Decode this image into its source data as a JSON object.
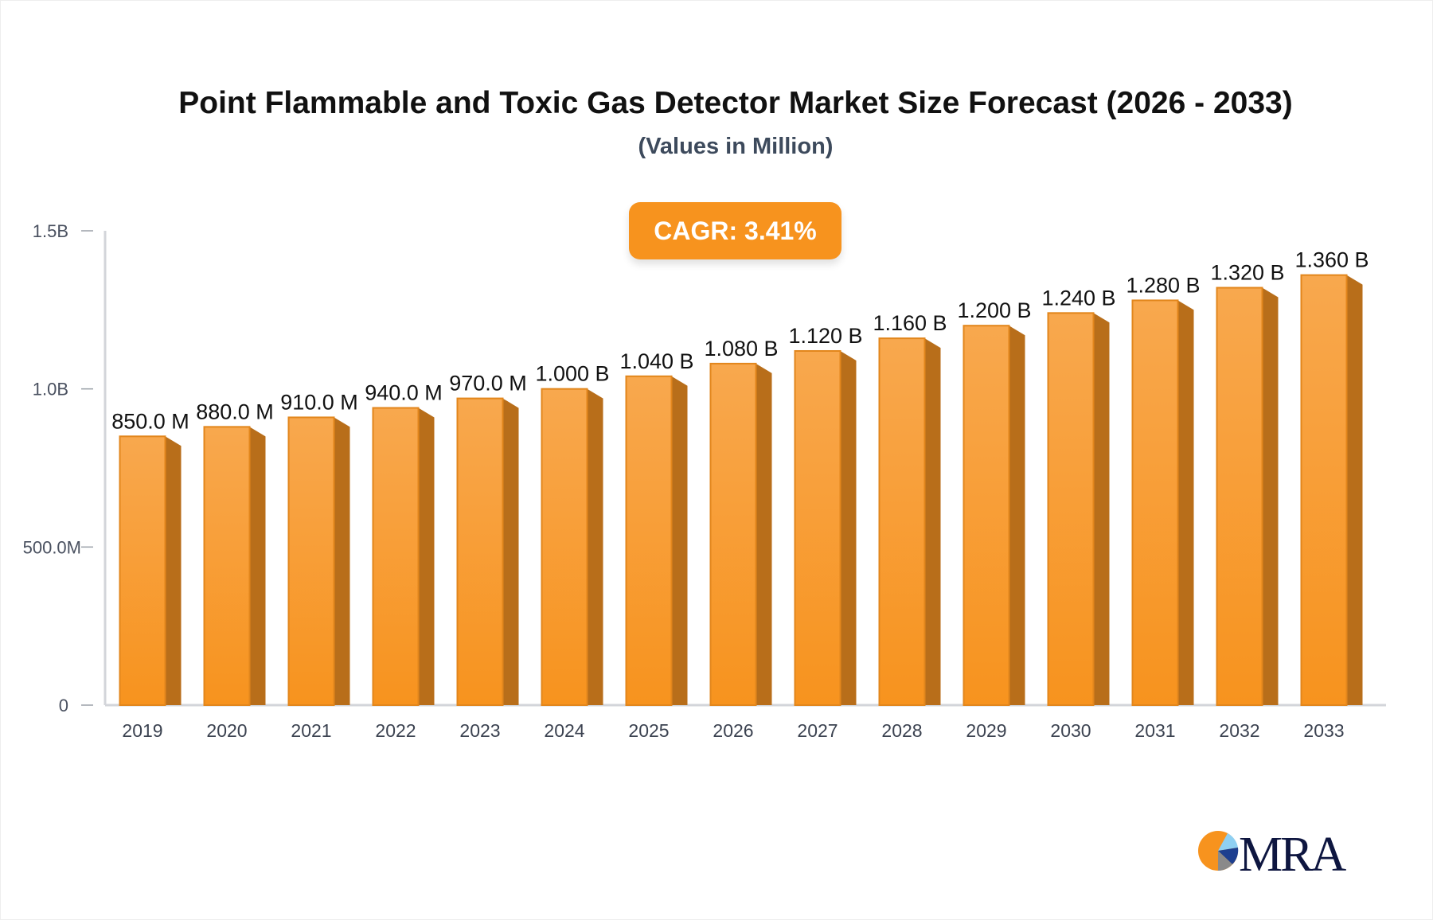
{
  "chart_data": {
    "type": "bar",
    "title": "Point Flammable and Toxic Gas Detector Market Size Forecast (2026 - 2033)",
    "subtitle": "(Values in Million)",
    "annotation": "CAGR: 3.41%",
    "categories": [
      "2019",
      "2020",
      "2021",
      "2022",
      "2023",
      "2024",
      "2025",
      "2026",
      "2027",
      "2028",
      "2029",
      "2030",
      "2031",
      "2032",
      "2033"
    ],
    "values": [
      850,
      880,
      910,
      940,
      970,
      1000,
      1040,
      1080,
      1120,
      1160,
      1200,
      1240,
      1280,
      1320,
      1360
    ],
    "data_labels": [
      "850.0 M",
      "880.0 M",
      "910.0 M",
      "940.0 M",
      "970.0 M",
      "1.000 B",
      "1.040 B",
      "1.080 B",
      "1.120 B",
      "1.160 B",
      "1.200 B",
      "1.240 B",
      "1.280 B",
      "1.320 B",
      "1.360 B"
    ],
    "yticks": [
      0,
      500,
      1000,
      1500
    ],
    "ytick_labels": [
      "0",
      "500.0M",
      "1.0B",
      "1.5B"
    ],
    "ylim": [
      0,
      1500
    ],
    "xlabel": "",
    "ylabel": "",
    "grid": false,
    "colors": {
      "bar_front": "#f7a448",
      "bar_front_bottom": "#f7931e",
      "bar_side": "#b86e1a",
      "bar_edge": "#e2861c",
      "cagr_badge": "#f7931e"
    }
  },
  "logo": {
    "text": "MRA"
  }
}
